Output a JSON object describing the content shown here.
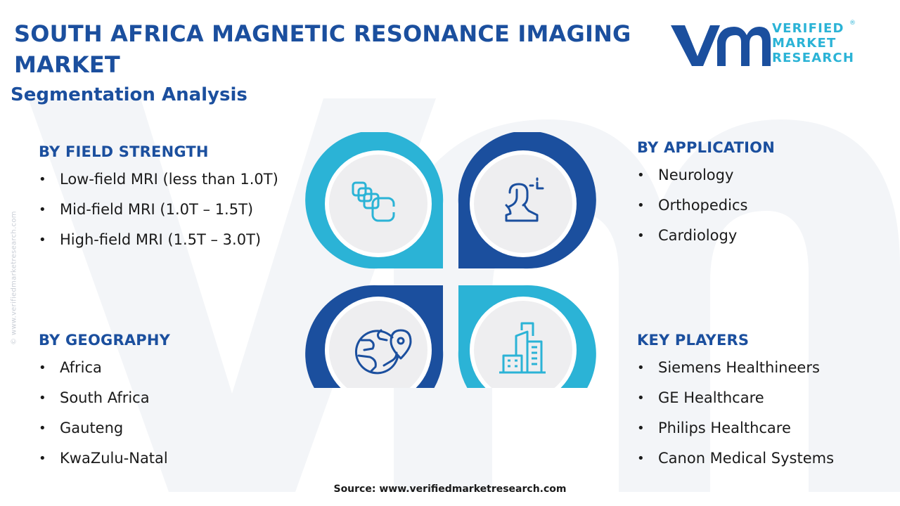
{
  "header": {
    "title": "SOUTH AFRICA MAGNETIC RESONANCE IMAGING MARKET",
    "subtitle": "Segmentation Analysis"
  },
  "logo": {
    "line1": "VERIFIED",
    "line2": "MARKET",
    "line3": "RESEARCH",
    "registered": "®"
  },
  "side_credit": "© www.verifiedmarketresearch.com",
  "segments": {
    "field_strength": {
      "heading": "BY FIELD STRENGTH",
      "items": [
        "Low-field MRI (less than 1.0T)",
        "Mid-field MRI (1.0T – 1.5T)",
        "High-field MRI (1.5T – 3.0T)"
      ]
    },
    "application": {
      "heading": "BY APPLICATION",
      "items": [
        "Neurology",
        "Orthopedics",
        "Cardiology"
      ]
    },
    "geography": {
      "heading": "BY GEOGRAPHY",
      "items": [
        "Africa",
        "South Africa",
        "Gauteng",
        "KwaZulu-Natal"
      ]
    },
    "key_players": {
      "heading": "KEY PLAYERS",
      "items": [
        "Siemens Healthineers",
        "GE Healthcare",
        "Philips Healthcare",
        "Canon Medical Systems"
      ]
    }
  },
  "icons": {
    "top_left": "layers-icon",
    "top_right": "user-scan-icon",
    "bottom_left": "globe-location-icon",
    "bottom_right": "buildings-icon"
  },
  "colors": {
    "primary_blue": "#1b4f9e",
    "accent_cyan": "#2bb3d6",
    "circle_fill": "#eeeef0"
  },
  "source": "Source: www.verifiedmarketresearch.com"
}
